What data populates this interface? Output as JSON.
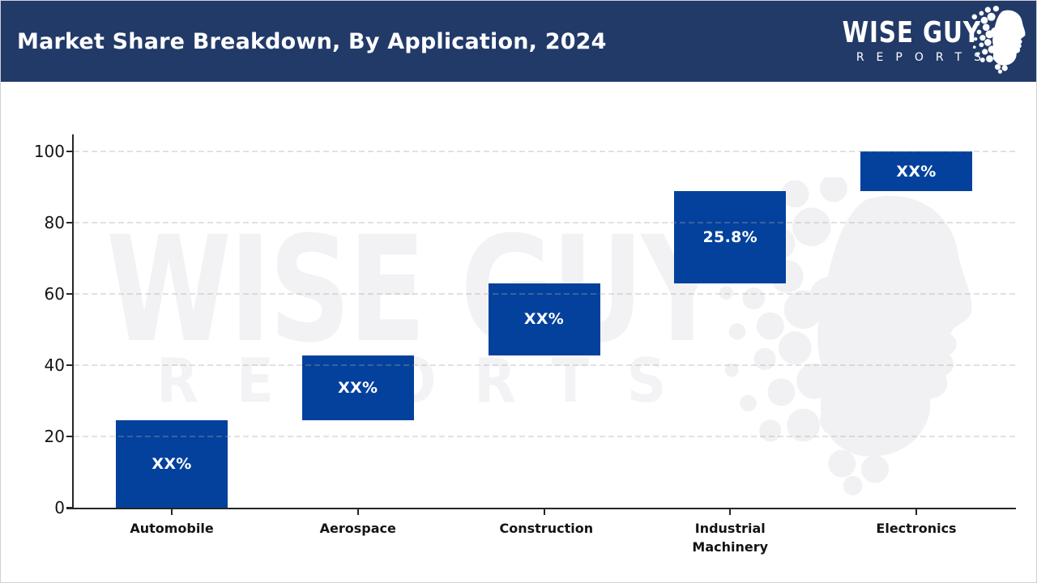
{
  "header": {
    "title": "Market Share Breakdown, By Application, 2024",
    "logo": {
      "name": "WISE GUY",
      "tagline": "REPORTS"
    }
  },
  "watermark": {
    "brand": "WISE GUY",
    "tagline": "REPORTS"
  },
  "chart_data": {
    "type": "bar",
    "subtype": "floating-waterfall-segments",
    "title": "Market Share Breakdown, By Application, 2024",
    "categories": [
      "Automobile",
      "Aerospace",
      "Construction",
      "Industrial Machinery",
      "Electronics"
    ],
    "bars": [
      {
        "category": "Automobile",
        "start": 0,
        "end": 24.5,
        "label": "XX%"
      },
      {
        "category": "Aerospace",
        "start": 24.5,
        "end": 42.7,
        "label": "XX%"
      },
      {
        "category": "Construction",
        "start": 42.7,
        "end": 63.0,
        "label": "XX%"
      },
      {
        "category": "Industrial Machinery",
        "start": 63.0,
        "end": 88.8,
        "label": "25.8%"
      },
      {
        "category": "Electronics",
        "start": 88.8,
        "end": 100,
        "label": "XX%"
      }
    ],
    "xlabel": "",
    "ylabel": "",
    "ylim": [
      0,
      100
    ],
    "yticks": [
      0,
      20,
      40,
      60,
      80,
      100
    ],
    "grid": "horizontal-dashed",
    "legend": "none",
    "colors": {
      "bar": "#04419C",
      "bar_label": "#FFFFFF",
      "axis": "#262626",
      "grid": "#DCDCDC",
      "header_bg": "#223A68",
      "watermark": "#F2F2F4"
    }
  }
}
